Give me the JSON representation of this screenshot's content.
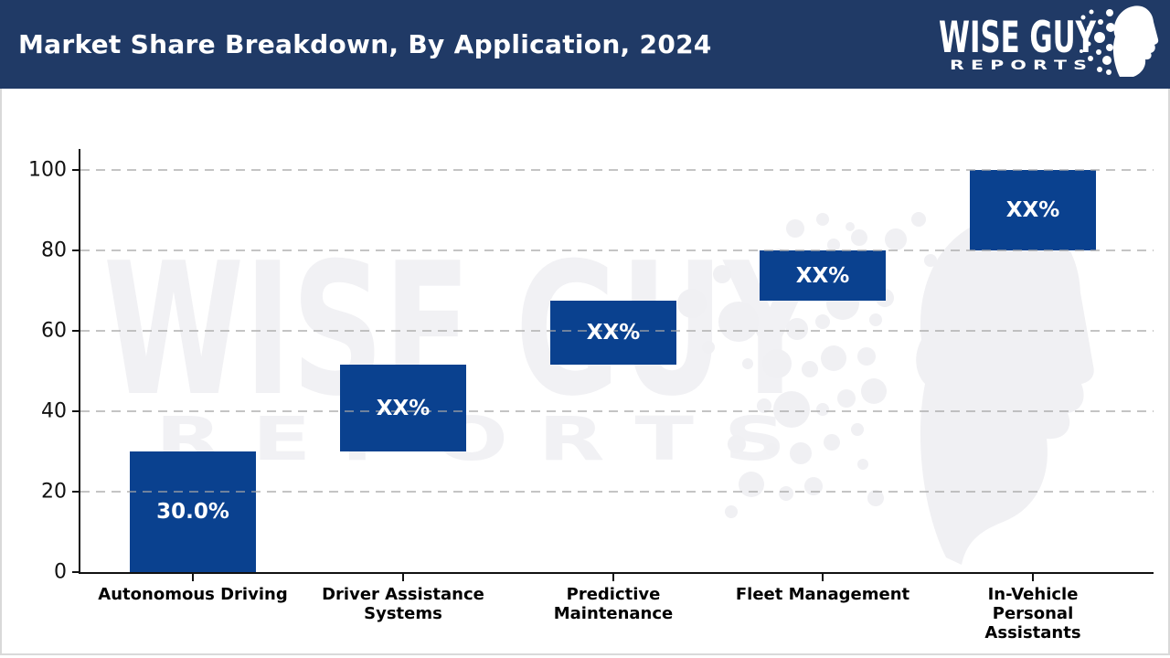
{
  "header": {
    "title": "Market Share Breakdown, By Application, 2024",
    "logo": {
      "brand_line1": "WISE GUY",
      "brand_line2": "R E P O R T S"
    }
  },
  "watermark": {
    "line1": "WISE GUY",
    "line2": "R E P O R T S"
  },
  "chart_data": {
    "type": "bar",
    "subtype": "waterfall",
    "title": "Market Share Breakdown, By Application, 2024",
    "xlabel": "",
    "ylabel": "",
    "ylim": [
      0,
      105
    ],
    "yticks": [
      0,
      20,
      40,
      60,
      80,
      100
    ],
    "grid": "horizontal-dashed",
    "legend": "none",
    "categories": [
      "Autonomous Driving",
      "Driver Assistance Systems",
      "Predictive Maintenance",
      "Fleet Management",
      "In-Vehicle Personal Assistants"
    ],
    "category_lines": [
      [
        "Autonomous Driving"
      ],
      [
        "Driver Assistance",
        "Systems"
      ],
      [
        "Predictive",
        "Maintenance"
      ],
      [
        "Fleet Management"
      ],
      [
        "In-Vehicle",
        "Personal",
        "Assistants"
      ]
    ],
    "segments": [
      {
        "category": "Autonomous Driving",
        "start": 0,
        "end": 30.0,
        "value": 30.0,
        "label": "30.0%"
      },
      {
        "category": "Driver Assistance Systems",
        "start": 30.0,
        "end": 51.5,
        "value": 21.5,
        "label": "XX%"
      },
      {
        "category": "Predictive Maintenance",
        "start": 51.5,
        "end": 67.5,
        "value": 16.0,
        "label": "XX%"
      },
      {
        "category": "Fleet Management",
        "start": 67.5,
        "end": 80.0,
        "value": 12.5,
        "label": "XX%"
      },
      {
        "category": "In-Vehicle Personal Assistants",
        "start": 80.0,
        "end": 100.0,
        "value": 20.0,
        "label": "XX%"
      }
    ]
  },
  "colors": {
    "header_bg": "#203A66",
    "bar": "#0A418F",
    "bar_label": "#ffffff",
    "axis": "#111111",
    "grid": "#a5a5a5",
    "watermark": "#f1f1f4",
    "frame": "#d9d9d9"
  }
}
